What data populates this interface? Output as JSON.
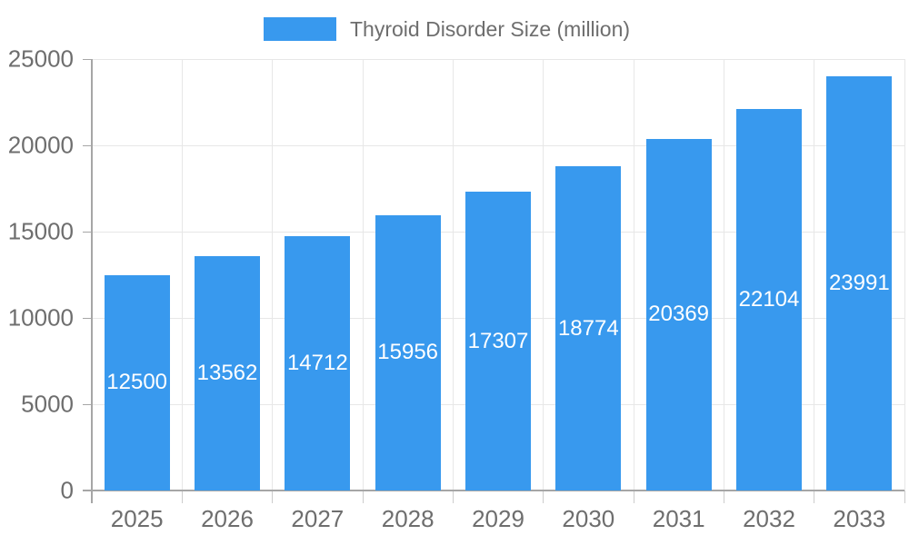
{
  "legend": {
    "label": "Thyroid Disorder Size (million)"
  },
  "chart_data": {
    "type": "bar",
    "title": "Thyroid Disorder Size (million)",
    "legend_position": "top",
    "categories": [
      "2025",
      "2026",
      "2027",
      "2028",
      "2029",
      "2030",
      "2031",
      "2032",
      "2033"
    ],
    "values": [
      12500,
      13562,
      14712,
      15956,
      17307,
      18774,
      20369,
      22104,
      23991
    ],
    "xlabel": "",
    "ylabel": "",
    "ylim": [
      0,
      25000
    ],
    "yticks": [
      0,
      5000,
      10000,
      15000,
      20000,
      25000
    ],
    "grid": true,
    "value_labels": "inside-center",
    "colors": {
      "bar": "#3899ee",
      "value_label": "#ffffff",
      "axis_text": "#6e6e6e",
      "grid_line": "#e7e7e7",
      "axis_line": "#a6a6a6",
      "tick_line": "#cccccc"
    }
  }
}
